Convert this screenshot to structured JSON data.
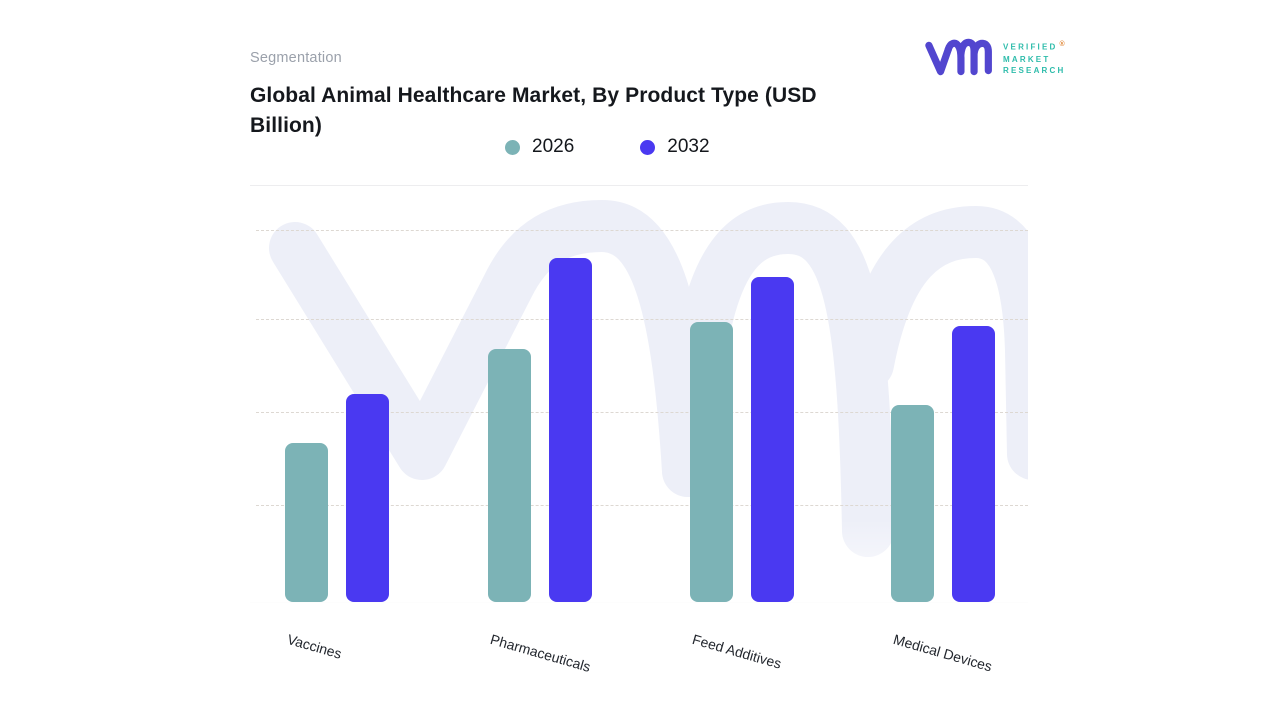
{
  "header": {
    "eyebrow": "Segmentation",
    "title": "Global Animal Healthcare Market, By Product Type (USD Billion)"
  },
  "logo": {
    "lines": [
      "VERIFIED",
      "MARKET",
      "RESEARCH"
    ],
    "registered": "®",
    "brand_purple": "#5246cf",
    "brand_teal": "#2ebcab",
    "registered_color": "#e08a3c"
  },
  "legend": {
    "position": "top-center"
  },
  "watermark": {
    "name": "vmr-logo-watermark",
    "color": "#edeff8"
  },
  "chart_data": {
    "type": "bar",
    "title": "Global Animal Healthcare Market, By Product Type (USD Billion)",
    "categories": [
      "Vaccines",
      "Pharmaceuticals",
      "Feed Additives",
      "Medical Devices"
    ],
    "series": [
      {
        "name": "2026",
        "color": "#7cb3b6",
        "values": [
          42,
          67,
          74,
          52
        ]
      },
      {
        "name": "2032",
        "color": "#4a39f1",
        "values": [
          55,
          91,
          86,
          73
        ]
      }
    ],
    "xlabel": "",
    "ylabel": "USD Billion",
    "ylim": [
      0,
      100
    ],
    "grid": "horizontal-dashed",
    "legend_position": "top",
    "axis_colors": {
      "gridline": "#ddd8d2",
      "baseline": "#e9e9e9"
    },
    "note": "Y axis is unlabeled in the source image; values are relative bar heights in % of plot height."
  }
}
